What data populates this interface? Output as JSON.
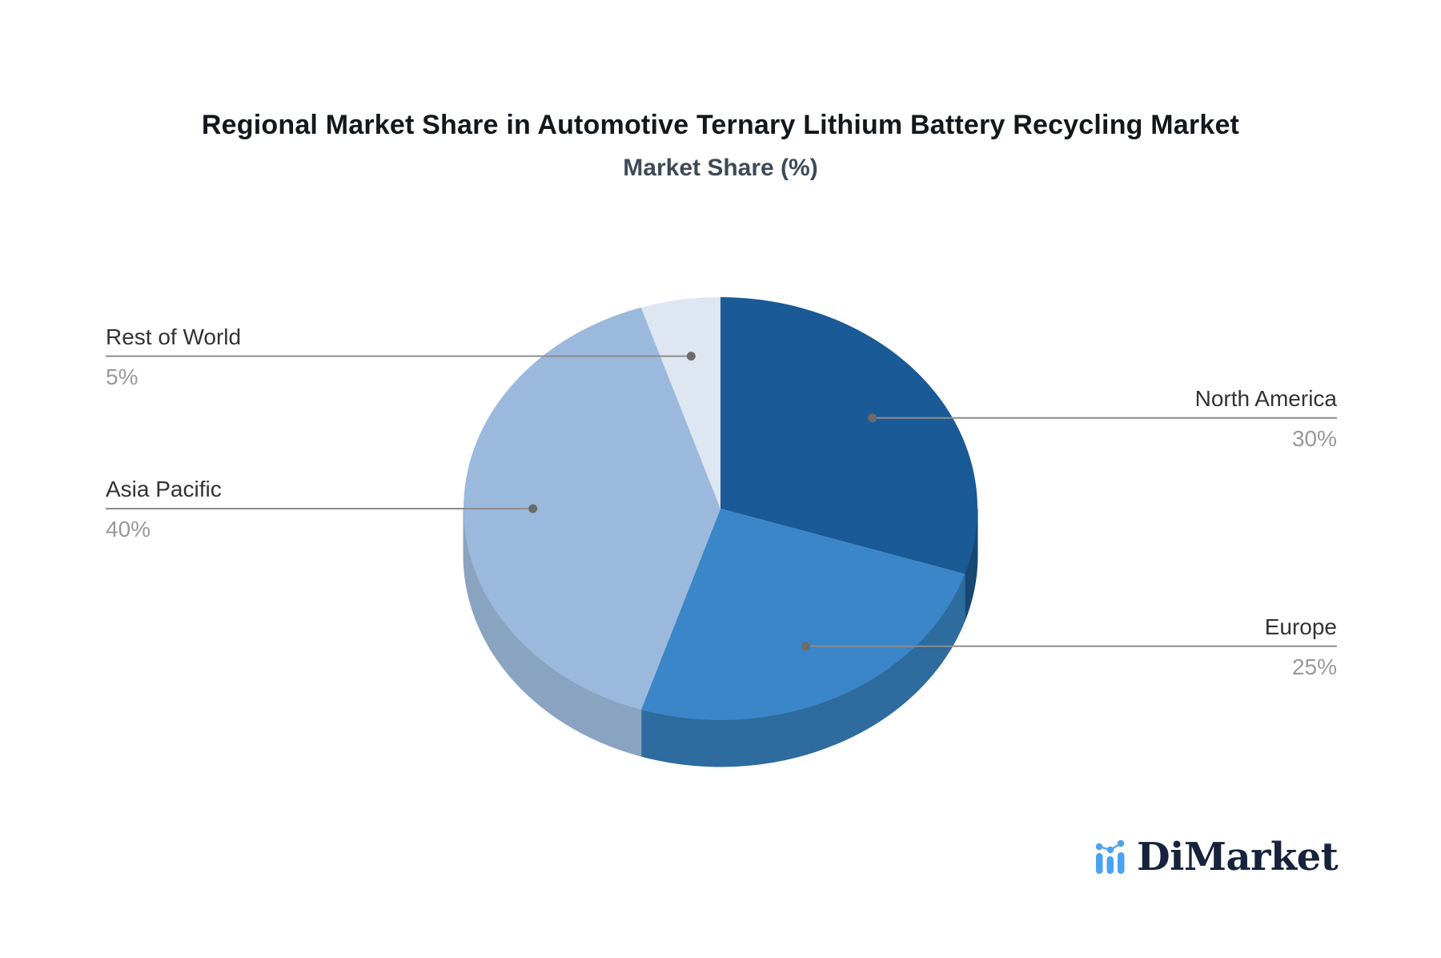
{
  "chart_data": {
    "type": "pie",
    "style": "3d",
    "title": "Regional Market Share in Automotive Ternary Lithium Battery Recycling Market",
    "subtitle": "Market Share (%)",
    "unit": "%",
    "start_angle_deg": 0,
    "direction": "clockwise",
    "legend_position": "callout-labels",
    "slices": [
      {
        "label": "North America",
        "value": 30,
        "display": "30%",
        "color": "#1a5a96",
        "side_color": "#174872",
        "label_side": "right"
      },
      {
        "label": "Europe",
        "value": 25,
        "display": "25%",
        "color": "#3a86c8",
        "side_color": "#2e6b9e",
        "label_side": "right"
      },
      {
        "label": "Asia Pacific",
        "value": 40,
        "display": "40%",
        "color": "#9bb9dc",
        "side_color": "#89a3c0",
        "label_side": "left"
      },
      {
        "label": "Rest of World",
        "value": 5,
        "display": "5%",
        "color": "#dde6f1",
        "side_color": "#c9d6e6",
        "label_side": "left"
      }
    ],
    "leader_line_color": "#8c8c8c",
    "leader_dot_color": "#6b6b6b",
    "label_text_color": "#333333",
    "value_text_color": "#999999"
  },
  "brand": {
    "name": "DiMarket",
    "icon": "bar-line-chart-icon",
    "icon_color": "#4aa2f2",
    "text_color": "#17233c"
  }
}
